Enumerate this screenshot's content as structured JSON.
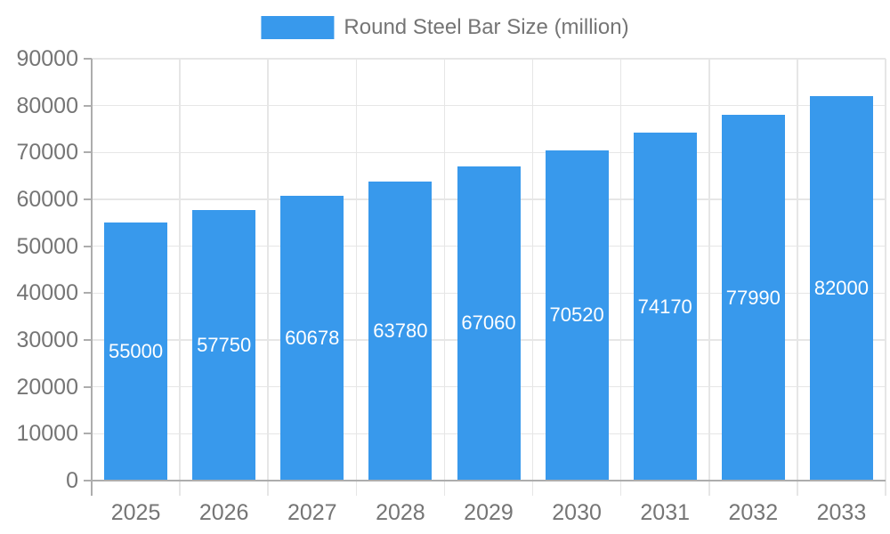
{
  "legend": {
    "label": "Round Steel Bar Size (million)"
  },
  "colors": {
    "bar": "#3899EC",
    "bar_value_text": "#FFFFFF",
    "axis_text": "#757575",
    "gridline": "#E6E6E6",
    "axis_line": "#ADADAD",
    "background": "#FFFFFF"
  },
  "chart_data": {
    "type": "bar",
    "title": "Round Steel Bar Size (million)",
    "series": [
      {
        "name": "Round Steel Bar Size (million)",
        "values": [
          55000,
          57750,
          60678,
          63780,
          67060,
          70520,
          74170,
          77990,
          82000
        ]
      }
    ],
    "categories": [
      "2025",
      "2026",
      "2027",
      "2028",
      "2029",
      "2030",
      "2031",
      "2032",
      "2033"
    ],
    "value_labels": [
      "55000",
      "57750",
      "60678",
      "63780",
      "67060",
      "70520",
      "74170",
      "77990",
      "82000"
    ],
    "ytick_labels": [
      "0",
      "10000",
      "20000",
      "30000",
      "40000",
      "50000",
      "60000",
      "70000",
      "80000",
      "90000"
    ],
    "xlabel": "",
    "ylabel": "",
    "ylim": [
      0,
      90000
    ],
    "ytick_step": 10000,
    "grid": "on",
    "legend_position": "top-center",
    "value_label_position": "inside-center"
  }
}
